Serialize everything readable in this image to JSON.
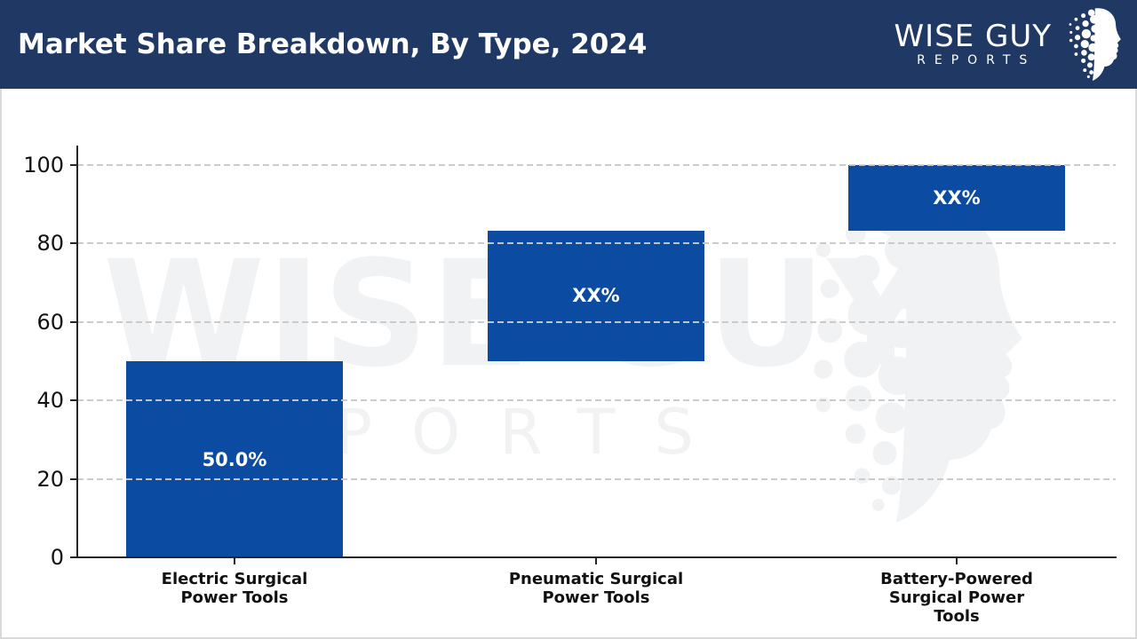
{
  "header": {
    "title": "Market Share Breakdown, By Type, 2024",
    "logo": {
      "wordmark": "WISE GUY",
      "subtitle": "REPORTS"
    }
  },
  "watermark": {
    "wordmark": "WISE GUY",
    "subtitle": "REPORTS"
  },
  "colors": {
    "header_bg": "#203864",
    "bar": "#0b4ba1",
    "bar_label": "#ffffff",
    "grid": "#c9c9c9",
    "axis": "#262626",
    "watermark": "#f1f2f4"
  },
  "chart_data": {
    "type": "bar",
    "variant": "stacked-waterfall",
    "title": "Market Share Breakdown, By Type, 2024",
    "categories": [
      "Electric Surgical\nPower Tools",
      "Pneumatic Surgical\nPower Tools",
      "Battery-Powered\nSurgical Power\nTools"
    ],
    "bars": [
      {
        "category": "Electric Surgical Power Tools",
        "start": 0,
        "end": 50.0,
        "value": 50.0,
        "label": "50.0%"
      },
      {
        "category": "Pneumatic Surgical Power Tools",
        "start": 50.0,
        "end": 83.3,
        "value": 33.3,
        "label": "XX%"
      },
      {
        "category": "Battery-Powered Surgical Power Tools",
        "start": 83.3,
        "end": 100.0,
        "value": 16.7,
        "label": "XX%"
      }
    ],
    "yticks": [
      0,
      20,
      40,
      60,
      80,
      100
    ],
    "ylim": [
      0,
      105
    ],
    "xlabel": "",
    "ylabel": "",
    "grid": "horizontal-dashed-over-bars",
    "legend": "none",
    "bar_color": "#0b4ba1"
  }
}
